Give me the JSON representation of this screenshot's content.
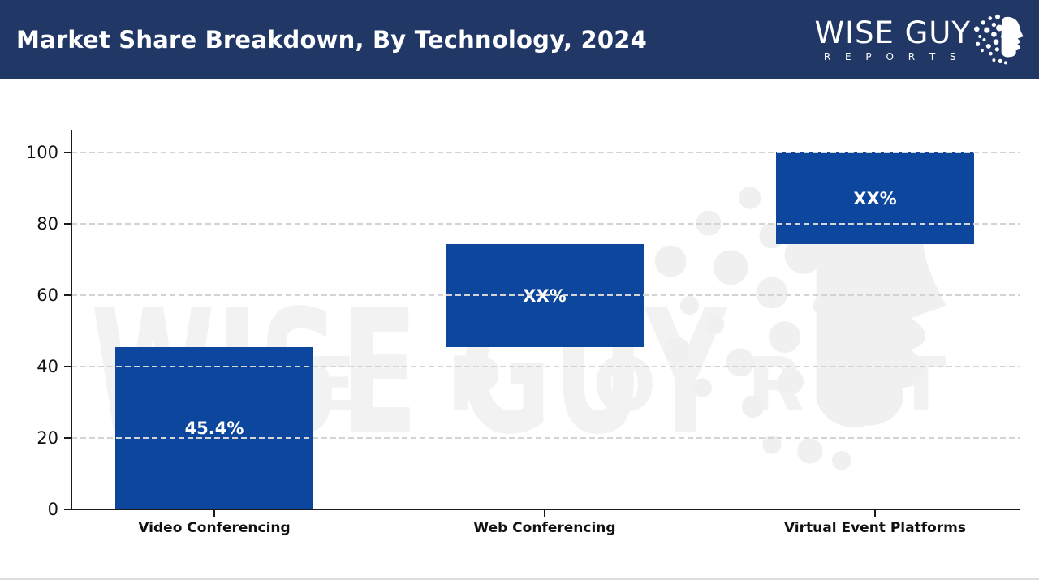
{
  "header": {
    "title": "Market Share Breakdown, By Technology, 2024",
    "logo": {
      "primary": "WISE GUY",
      "secondary": "R E P O R T S"
    }
  },
  "watermark": {
    "primary": "WISE GUY",
    "secondary": "R E P O R T S"
  },
  "chart_data": {
    "type": "bar",
    "variant": "stacked_waterfall",
    "title": "Market Share Breakdown, By Technology, 2024",
    "categories": [
      "Video Conferencing",
      "Web Conferencing",
      "Virtual Event Platforms"
    ],
    "segments": [
      {
        "category": "Video Conferencing",
        "start": 0,
        "end": 45.4,
        "label": "45.4%"
      },
      {
        "category": "Web Conferencing",
        "start": 45.4,
        "end": 74.3,
        "label": "XX%"
      },
      {
        "category": "Virtual Event Platforms",
        "start": 74.3,
        "end": 100,
        "label": "XX%"
      }
    ],
    "ylim": [
      0,
      100
    ],
    "yticks": [
      0,
      20,
      40,
      60,
      80,
      100
    ],
    "grid": "horizontal_dashed",
    "legend": "none",
    "bar_color": "#0c479d",
    "bar_label_color": "#ffffff"
  },
  "colors": {
    "header_bg": "#213867",
    "bar": "#0c479d",
    "grid": "#d4d4d4",
    "axis": "#1a1a1a",
    "watermark": "#f2f2f2",
    "bottom_line": "#dcdcdc"
  }
}
